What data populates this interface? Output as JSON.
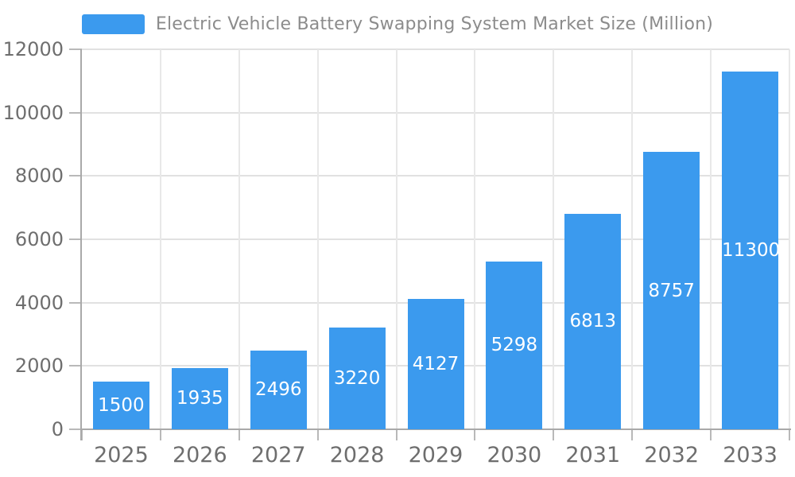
{
  "legend": {
    "label": "Electric Vehicle Battery Swapping System Market Size (Million)"
  },
  "chart_data": {
    "type": "bar",
    "title": "Electric Vehicle Battery Swapping System Market Size (Million)",
    "categories": [
      "2025",
      "2026",
      "2027",
      "2028",
      "2029",
      "2030",
      "2031",
      "2032",
      "2033"
    ],
    "values": [
      1500,
      1935,
      2496,
      3220,
      4127,
      5298,
      6813,
      8757,
      11300
    ],
    "series_name": "Electric Vehicle Battery Swapping System Market Size (Million)",
    "xlabel": "",
    "ylabel": "",
    "ylim": [
      0,
      12000
    ],
    "y_ticks": [
      0,
      2000,
      4000,
      6000,
      8000,
      10000,
      12000
    ],
    "grid": true,
    "legend_position": "top",
    "value_labels": "inside-center",
    "colors": {
      "bar": "#3B9AEE",
      "value_label": "#FFFFFF",
      "grid_h": "#E1E1E1",
      "grid_v": "#E8E8E8",
      "axis_line": "#A9A9A9",
      "tick": "#B9B9B9",
      "axis_label": "#6E6E6E",
      "title": "#8C8C8C",
      "background": "#FFFFFF"
    }
  }
}
